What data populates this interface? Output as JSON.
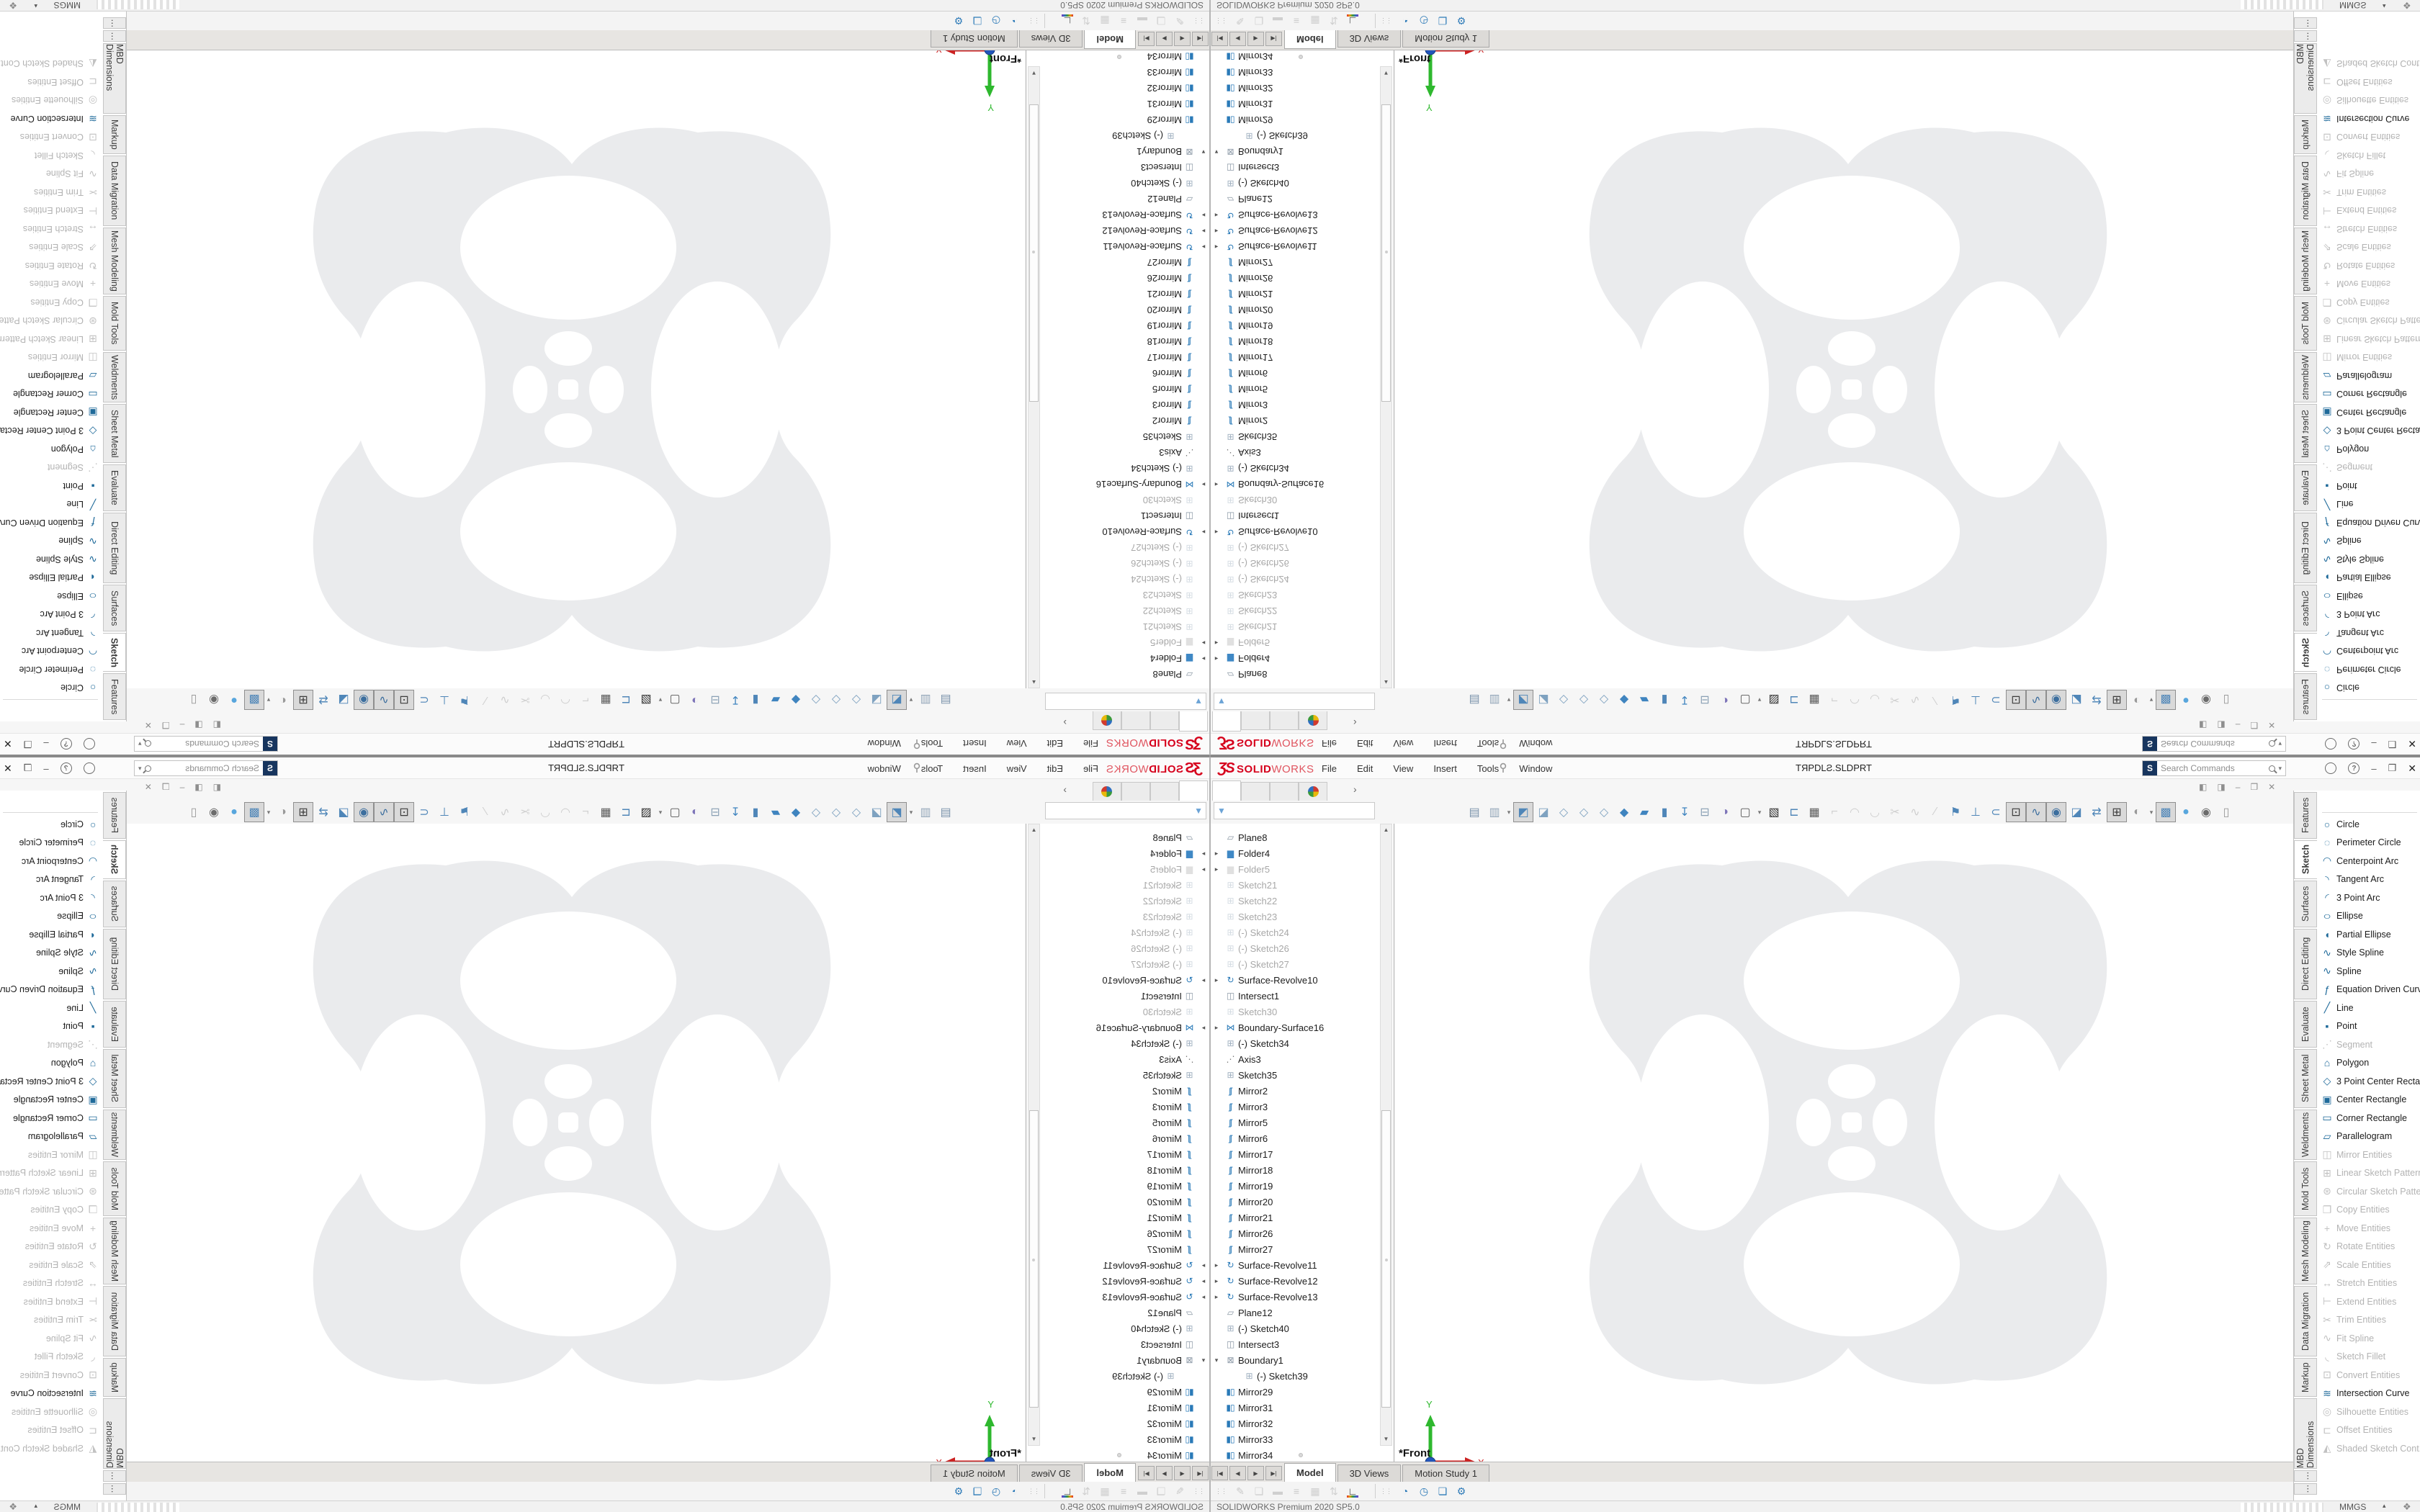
{
  "window": {
    "logo_mark": "ƷS",
    "logo_solid": "SOLID",
    "logo_works": "WORKS",
    "menus": [
      "File",
      "Edit",
      "View",
      "Insert",
      "Tools",
      "Window"
    ],
    "title": "TЯPDLƧ.SLDPRT",
    "controls": [
      {
        "n": "minimize-window",
        "g": "–"
      },
      {
        "n": "restore-window",
        "g": "❐"
      },
      {
        "n": "close-window",
        "g": "✕"
      }
    ],
    "doc_controls": [
      {
        "n": "tile-left",
        "g": "◧"
      },
      {
        "n": "tile-right",
        "g": "◨"
      },
      {
        "n": "minimize-document",
        "g": "–"
      },
      {
        "n": "restore-document",
        "g": "❐"
      },
      {
        "n": "close-document",
        "g": "✕"
      }
    ],
    "help_glyph": "?"
  },
  "search": {
    "placeholder": "Search Commands",
    "caret": "▾"
  },
  "fm_tabs": [
    {
      "n": "featuremanager-tree-tab",
      "g": "❖",
      "c": "#d9a521",
      "active": true
    },
    {
      "n": "propertymanager-tab",
      "g": "▤",
      "c": "#4f86b8"
    },
    {
      "n": "configurationmanager-tab",
      "g": "⊕",
      "c": "#444444"
    },
    {
      "n": "displaymanager-tab",
      "g": "",
      "c": "",
      "ball": true
    }
  ],
  "fm_chevron": "›",
  "filter": {
    "funnel": "▼"
  },
  "main_toolbar": [
    {
      "n": "save-icon",
      "g": "▤",
      "c": "#7b93ab"
    },
    {
      "n": "publish-document-icon",
      "g": "▥",
      "c": "#93a6b8"
    },
    {
      "n": "save-caret-icon",
      "g": "▾",
      "c": "#777777",
      "caret": true
    },
    {
      "n": "display-shaded-edges-icon",
      "g": "◩",
      "c": "#4f86b8",
      "p": true
    },
    {
      "n": "display-shaded-icon",
      "g": "◪",
      "c": "#7fa2c0"
    },
    {
      "n": "display-hidden-lines-removed-icon",
      "g": "◇",
      "c": "#7fa2c0"
    },
    {
      "n": "display-hidden-lines-visible-icon",
      "g": "◇",
      "c": "#7fa2c0"
    },
    {
      "n": "display-wireframe-icon",
      "g": "◇",
      "c": "#7fa2c0"
    },
    {
      "n": "gem-view-icon",
      "g": "◆",
      "c": "#3f84bf"
    },
    {
      "n": "cube-solid-icon",
      "g": "▰",
      "c": "#3f84bf"
    },
    {
      "n": "cylinder-icon",
      "g": "▮",
      "c": "#4f86b8"
    },
    {
      "n": "arrow-down-icon",
      "g": "↧",
      "c": "#3f84bf"
    },
    {
      "n": "viewport-layout-icon",
      "g": "⊟",
      "c": "#8aa0b5"
    },
    {
      "n": "section-view-icon",
      "g": "◑",
      "c": "#7d74b8"
    },
    {
      "n": "cube-outline-icon",
      "g": "▢",
      "c": "#5a5a5a"
    },
    {
      "n": "view-caret-icon",
      "g": "▾",
      "c": "#777777",
      "caret": true
    },
    {
      "n": "zebra-stripes-icon",
      "g": "▧",
      "c": "#2e2e2e"
    },
    {
      "n": "draft-analysis-icon",
      "g": "⊏",
      "c": "#4f86b8"
    },
    {
      "n": "grid-3d-icon",
      "g": "▦",
      "c": "#5a5a5a"
    },
    {
      "n": "relation-perpendicular-icon",
      "g": "⌐",
      "c": "#cfcfcf"
    },
    {
      "n": "relation-arc-icon",
      "g": "◠",
      "c": "#cfcfcf"
    },
    {
      "n": "relation-curve-icon",
      "g": "◡",
      "c": "#cfcfcf"
    },
    {
      "n": "relation-trim-icon",
      "g": "✂",
      "c": "#cfcfcf"
    },
    {
      "n": "relation-spline-icon",
      "g": "∿",
      "c": "#cfcfcf"
    },
    {
      "n": "relation-line-icon",
      "g": "∕",
      "c": "#cfcfcf"
    },
    {
      "n": "plant-flag-icon",
      "g": "⚑",
      "c": "#4f86b8"
    },
    {
      "n": "hide-show-planes-icon",
      "g": "⊥",
      "c": "#4f86b8"
    },
    {
      "n": "hide-show-axes-icon",
      "g": "⊂",
      "c": "#4f86b8"
    },
    {
      "n": "hide-show-3d-sketch-icon",
      "g": "⊡",
      "c": "#3c3c3c",
      "p": true
    },
    {
      "n": "hide-show-curves-icon",
      "g": "∿",
      "c": "#3c6e9e",
      "p": true
    },
    {
      "n": "hide-show-points-icon",
      "g": "◉",
      "c": "#3c6e9e",
      "p": true
    },
    {
      "n": "hide-show-bodies-icon",
      "g": "◪",
      "c": "#4f86b8"
    },
    {
      "n": "hide-show-arrows-icon",
      "g": "⇄",
      "c": "#4f86b8"
    },
    {
      "n": "grid-toggle-icon",
      "g": "⊞",
      "c": "#3c3c3c",
      "p": true
    },
    {
      "n": "half-sphere-icon",
      "g": "◐",
      "c": "#9a9a9a"
    },
    {
      "n": "appearance-caret-icon",
      "g": "▾",
      "c": "#777777",
      "caret": true
    },
    {
      "n": "appearance-box-icon",
      "g": "▩",
      "c": "#4f86b8",
      "p": true
    },
    {
      "n": "sphere-blue-icon",
      "g": "●",
      "c": "#58a6dd"
    },
    {
      "n": "eyeball-icon",
      "g": "◉",
      "c": "#6b6b6b"
    },
    {
      "n": "cube-gray-icon",
      "g": "▯",
      "c": "#9a9a9a"
    }
  ],
  "tree": {
    "rows": [
      {
        "exp": "",
        "icon": "plane",
        "label": "Plane8"
      },
      {
        "exp": "▸",
        "icon": "folder",
        "label": "Folder4"
      },
      {
        "exp": "▸",
        "icon": "folder_g",
        "label": "Folder5",
        "dim": true
      },
      {
        "exp": "",
        "icon": "sketch",
        "label": "Sketch21",
        "dim": true
      },
      {
        "exp": "",
        "icon": "sketch",
        "label": "Sketch22",
        "dim": true
      },
      {
        "exp": "",
        "icon": "sketch",
        "label": "Sketch23",
        "dim": true
      },
      {
        "exp": "",
        "icon": "sketch",
        "label": "(-) Sketch24",
        "dim": true
      },
      {
        "exp": "",
        "icon": "sketch",
        "label": "(-) Sketch26",
        "dim": true
      },
      {
        "exp": "",
        "icon": "sketch",
        "label": "(-) Sketch27",
        "dim": true
      },
      {
        "exp": "▸",
        "icon": "revolve",
        "label": "Surface-Revolve10"
      },
      {
        "exp": "",
        "icon": "intersect",
        "label": "Intersect1"
      },
      {
        "exp": "",
        "icon": "sketch",
        "label": "Sketch30",
        "dim": true
      },
      {
        "exp": "▸",
        "icon": "boundary",
        "label": "Boundary-Surface16"
      },
      {
        "exp": "",
        "icon": "sketch",
        "label": "(-) Sketch34"
      },
      {
        "exp": "",
        "icon": "axis",
        "label": "Axis3"
      },
      {
        "exp": "",
        "icon": "sketch",
        "label": "Sketch35"
      },
      {
        "exp": "",
        "icon": "mirror",
        "label": "Mirror2"
      },
      {
        "exp": "",
        "icon": "mirror",
        "label": "Mirror3"
      },
      {
        "exp": "",
        "icon": "mirror",
        "label": "Mirror5"
      },
      {
        "exp": "",
        "icon": "mirror",
        "label": "Mirror6"
      },
      {
        "exp": "",
        "icon": "mirror",
        "label": "Mirror17"
      },
      {
        "exp": "",
        "icon": "mirror",
        "label": "Mirror18"
      },
      {
        "exp": "",
        "icon": "mirror",
        "label": "Mirror19"
      },
      {
        "exp": "",
        "icon": "mirror",
        "label": "Mirror20"
      },
      {
        "exp": "",
        "icon": "mirror",
        "label": "Mirror21"
      },
      {
        "exp": "",
        "icon": "mirror",
        "label": "Mirror26"
      },
      {
        "exp": "",
        "icon": "mirror",
        "label": "Mirror27"
      },
      {
        "exp": "▸",
        "icon": "revolve",
        "label": "Surface-Revolve11"
      },
      {
        "exp": "▸",
        "icon": "revolve",
        "label": "Surface-Revolve12"
      },
      {
        "exp": "▸",
        "icon": "revolve",
        "label": "Surface-Revolve13"
      },
      {
        "exp": "",
        "icon": "plane",
        "label": "Plane12"
      },
      {
        "exp": "",
        "icon": "sketch",
        "label": "(-) Sketch40"
      },
      {
        "exp": "",
        "icon": "intersect",
        "label": "Intersect3"
      },
      {
        "exp": "▾",
        "icon": "boundary2",
        "label": "Boundary1"
      },
      {
        "exp": "",
        "icon": "sketch",
        "label": "(-) Sketch39",
        "indent": 1
      },
      {
        "exp": "",
        "icon": "mirror_b",
        "label": "Mirror29"
      },
      {
        "exp": "",
        "icon": "mirror_b",
        "label": "Mirror31"
      },
      {
        "exp": "",
        "icon": "mirror_b",
        "label": "Mirror32"
      },
      {
        "exp": "",
        "icon": "mirror_b",
        "label": "Mirror33"
      },
      {
        "exp": "",
        "icon": "mirror_b",
        "label": "Mirror34"
      }
    ],
    "icon_map": {
      "plane": {
        "g": "▱",
        "c": "#8a97a3"
      },
      "folder": {
        "g": "▆",
        "c": "#3f88c5"
      },
      "folder_g": {
        "g": "▆",
        "c": "#bcbcbc"
      },
      "sketch": {
        "g": "⊞",
        "c": "#9fb0c0"
      },
      "revolve": {
        "g": "↻",
        "c": "#2a7ab8"
      },
      "intersect": {
        "g": "◫",
        "c": "#8a97a5"
      },
      "boundary": {
        "g": "⋈",
        "c": "#2a7ab8"
      },
      "boundary2": {
        "g": "⊠",
        "c": "#8a97a5"
      },
      "axis": {
        "g": "⋰",
        "c": "#777777"
      },
      "mirror": {
        "g": "ʃʃ",
        "c": "#2a7ab8"
      },
      "mirror_b": {
        "g": "▮▯",
        "c": "#2a7ab8"
      }
    },
    "scroll_up": "▲",
    "scroll_down": "▼"
  },
  "graphics": {
    "view_label": "*Front",
    "axis_x": "X",
    "axis_y": "Y"
  },
  "right_panel": {
    "tabs": [
      {
        "label": "Features"
      },
      {
        "label": "Sketch",
        "active": true
      },
      {
        "label": "Surfaces"
      },
      {
        "label": "Direct Editing"
      },
      {
        "label": "Evaluate"
      },
      {
        "label": "Sheet Metal"
      },
      {
        "label": "Weldments"
      },
      {
        "label": "Mold Tools"
      },
      {
        "label": "Mesh Modeling"
      },
      {
        "label": "Data Migration"
      },
      {
        "label": "Markup"
      },
      {
        "label": "MBD Dimensions"
      },
      {
        "label": "…"
      },
      {
        "label": "…"
      }
    ],
    "tools": [
      {
        "label": "Circle",
        "g": "○",
        "on": true
      },
      {
        "label": "Perimeter Circle",
        "g": "◌",
        "on": true
      },
      {
        "label": "Centerpoint Arc",
        "g": "◠",
        "on": true
      },
      {
        "label": "Tangent Arc",
        "g": "◝",
        "on": true
      },
      {
        "label": "3 Point Arc",
        "g": "◜",
        "on": true
      },
      {
        "label": "Ellipse",
        "g": "○",
        "on": true,
        "wide": true
      },
      {
        "label": "Partial Ellipse",
        "g": "◖",
        "on": true
      },
      {
        "label": "Style Spline",
        "g": "∿",
        "on": true
      },
      {
        "label": "Spline",
        "g": "∿",
        "on": true
      },
      {
        "label": "Equation Driven Curve",
        "g": "ƒ",
        "on": true
      },
      {
        "label": "Line",
        "g": "╱",
        "on": true
      },
      {
        "label": "Point",
        "g": "▪",
        "on": true
      },
      {
        "label": "Segment",
        "g": "⋰",
        "on": false
      },
      {
        "label": "Polygon",
        "g": "⌂",
        "on": true
      },
      {
        "label": "3 Point Center Recta...",
        "g": "◇",
        "on": true
      },
      {
        "label": "Center Rectangle",
        "g": "▣",
        "on": true
      },
      {
        "label": "Corner Rectangle",
        "g": "▭",
        "on": true
      },
      {
        "label": "Parallelogram",
        "g": "▱",
        "on": true
      },
      {
        "label": "Mirror Entities",
        "g": "◫",
        "on": false
      },
      {
        "label": "Linear Sketch Pattern",
        "g": "⊞",
        "on": false
      },
      {
        "label": "Circular Sketch Pattern",
        "g": "⊛",
        "on": false
      },
      {
        "label": "Copy Entities",
        "g": "❐",
        "on": false
      },
      {
        "label": "Move Entities",
        "g": "+",
        "on": false
      },
      {
        "label": "Rotate Entities",
        "g": "↻",
        "on": false
      },
      {
        "label": "Scale Entities",
        "g": "⇗",
        "on": false
      },
      {
        "label": "Stretch Entities",
        "g": "↔",
        "on": false
      },
      {
        "label": "Extend Entities",
        "g": "⊢",
        "on": false
      },
      {
        "label": "Trim Entities",
        "g": "✂",
        "on": false
      },
      {
        "label": "Fit Spline",
        "g": "∿",
        "on": false
      },
      {
        "label": "Sketch Fillet",
        "g": "◟",
        "on": false
      },
      {
        "label": "Convert Entities",
        "g": "⊡",
        "on": false
      },
      {
        "label": "Intersection Curve",
        "g": "≋",
        "on": true
      },
      {
        "label": "Silhouette Entities",
        "g": "◎",
        "on": false
      },
      {
        "label": "Offset Entities",
        "g": "⊏",
        "on": false
      },
      {
        "label": "Shaded Sketch Cont...",
        "g": "◭",
        "on": false
      }
    ]
  },
  "bottom_tabs": {
    "nav": [
      "|◀",
      "◀",
      "▶",
      "▶|"
    ],
    "tabs": [
      {
        "label": "Model",
        "active": true
      },
      {
        "label": "3D Views"
      },
      {
        "label": "Motion Study 1"
      }
    ]
  },
  "bottom_toolbar": [
    {
      "n": "ink-pen-icon",
      "g": "✎",
      "c": "#c9c9c9"
    },
    {
      "n": "ink-sheets-icon",
      "g": "❏",
      "c": "#cfcfcf"
    },
    {
      "n": "ink-eraser-icon",
      "g": "▬",
      "c": "#cfcfcf"
    },
    {
      "n": "ink-lines-icon",
      "g": "≡",
      "c": "#c9c9c9"
    },
    {
      "n": "ink-grid-icon",
      "g": "▦",
      "c": "#cfcfcf"
    },
    {
      "n": "ink-filter-icon",
      "g": "⇅",
      "c": "#cfcfcf"
    },
    {
      "n": "instant2d-ruler-icon",
      "g": "∟",
      "c": "#3a3a3a",
      "rb": true
    },
    {
      "n": "verification-icon",
      "g": "◔",
      "c": "#2e7bb8",
      "gap": true
    },
    {
      "n": "schedule-icon",
      "g": "◷",
      "c": "#2e7bb8"
    },
    {
      "n": "folder-check-icon",
      "g": "❏",
      "c": "#2e7bb8"
    },
    {
      "n": "settings-gear-icon",
      "g": "⚙",
      "c": "#2e7bb8"
    }
  ],
  "status": {
    "product": "SOLIDWORKS Premium 2020 SP5.0",
    "units": "MMGS",
    "units_caret": "▴",
    "tag": "❖"
  }
}
